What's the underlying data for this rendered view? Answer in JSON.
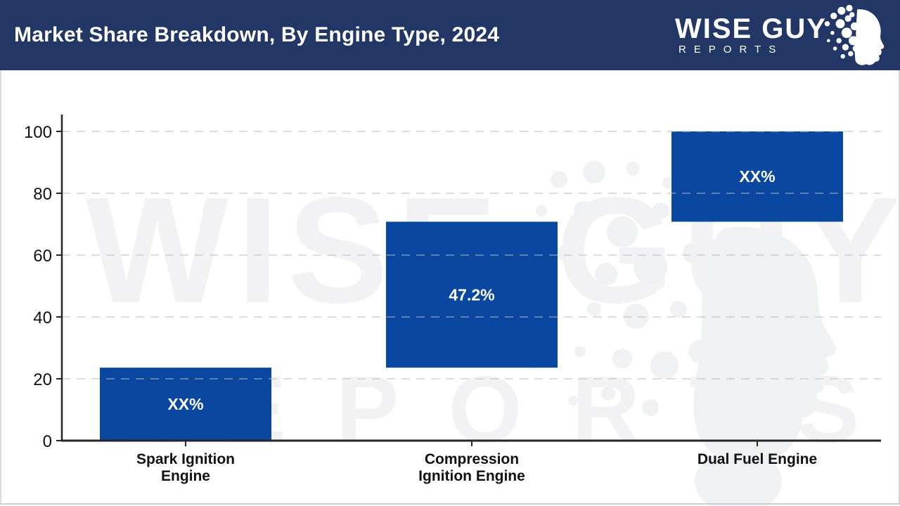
{
  "header": {
    "title": "Market Share Breakdown, By Engine Type, 2024",
    "bg_color": "#223766",
    "logo": {
      "line1": "WISE GUY",
      "line2": "REPORTS"
    }
  },
  "watermark": {
    "line1": "WISE GUY",
    "line2": "REPORTS"
  },
  "chart_data": {
    "type": "bar",
    "subtype": "floating stacked breakdown columns, segments sum to 100%",
    "title": "Market Share Breakdown, By Engine Type, 2024",
    "categories": [
      "Spark Ignition Engine",
      "Compression Ignition Engine",
      "Dual Fuel Engine"
    ],
    "category_label_lines": [
      [
        "Spark Ignition",
        "Engine"
      ],
      [
        "Compression",
        "Ignition Engine"
      ],
      [
        "Dual Fuel Engine"
      ]
    ],
    "segments": [
      {
        "category": "Spark Ignition Engine",
        "from": 0,
        "to": 23.6,
        "size_pct": 23.6,
        "label": "XX%"
      },
      {
        "category": "Compression Ignition Engine",
        "from": 23.6,
        "to": 70.8,
        "size_pct": 47.2,
        "label": "47.2%"
      },
      {
        "category": "Dual Fuel Engine",
        "from": 70.8,
        "to": 100,
        "size_pct": 29.2,
        "label": "XX%"
      }
    ],
    "xlabel": "",
    "ylabel": "",
    "ylim": [
      0,
      105.5
    ],
    "yticks": [
      0,
      20,
      40,
      60,
      80,
      100
    ],
    "ytick_labels": [
      "0",
      "20",
      "40",
      "60",
      "80",
      "100"
    ],
    "grid": "horizontal dashed, drawn over bars",
    "legend": "none",
    "style": {
      "bar_color": "#0a47a0",
      "axis_color": "#262626",
      "grid_color": "#bcbcbc",
      "tick_text_color": "#111111",
      "bar_label_color": "#ffffff",
      "watermark_color": "#f2f2f4"
    }
  }
}
